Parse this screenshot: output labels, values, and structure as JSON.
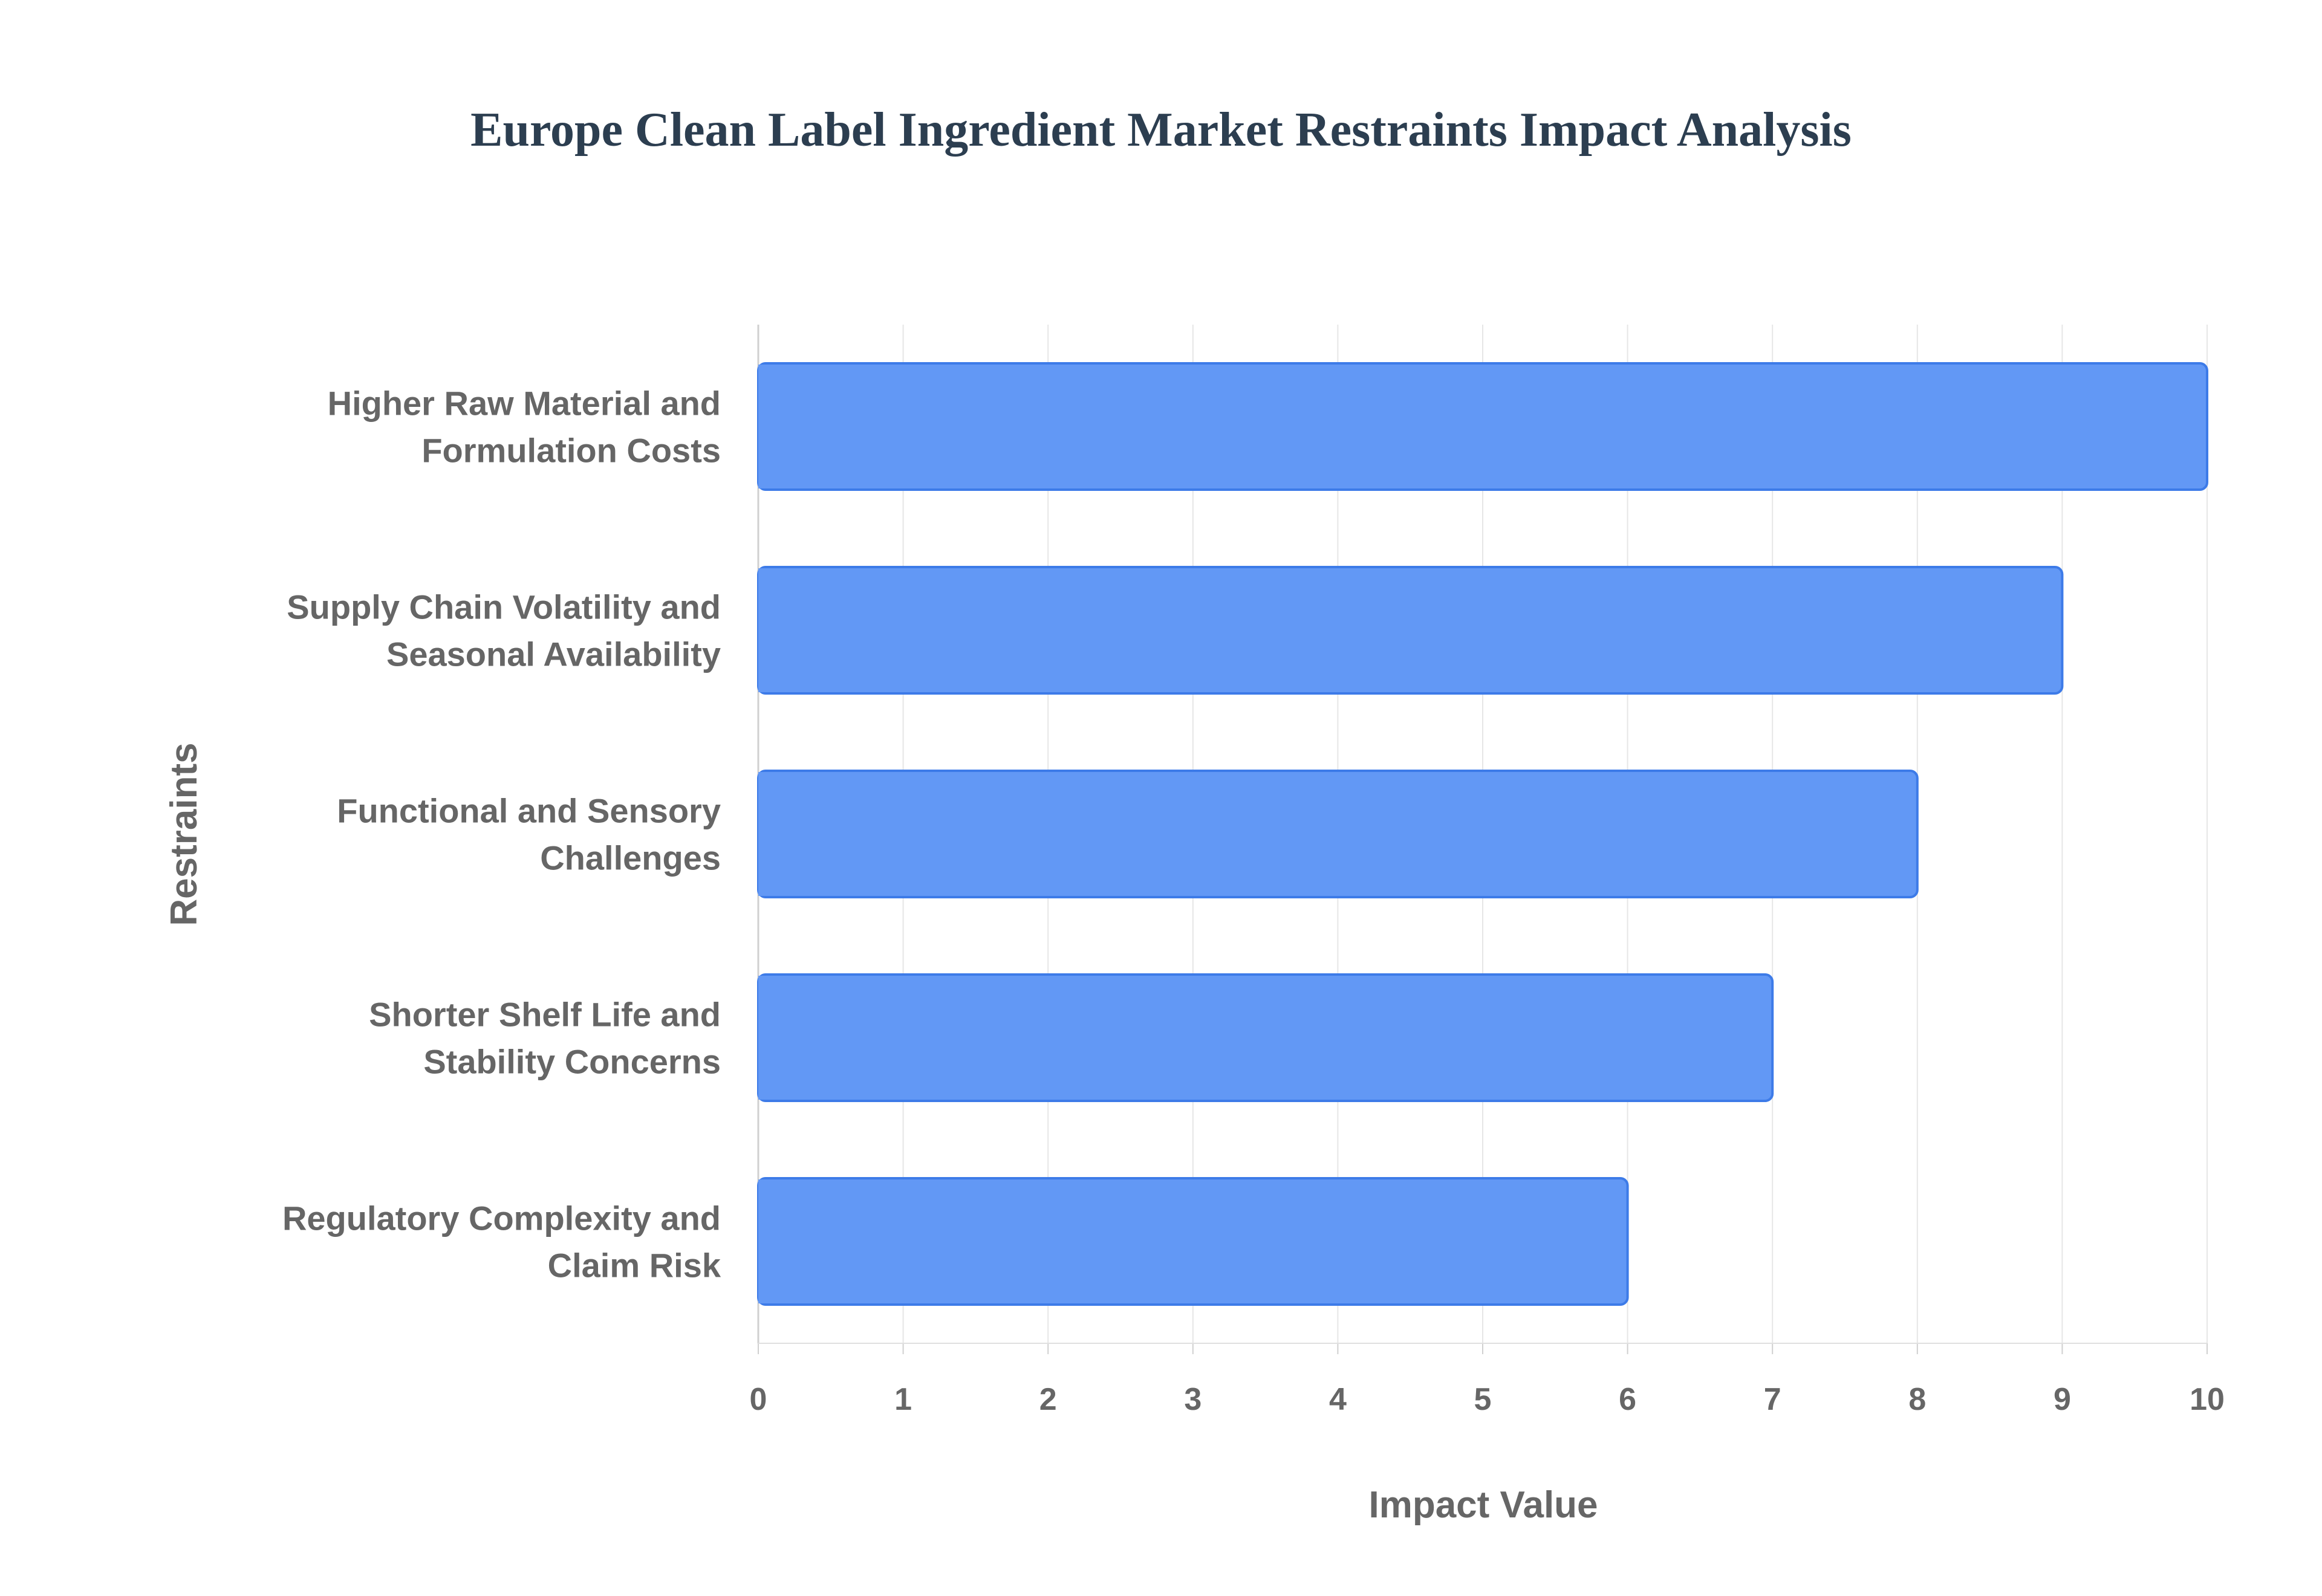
{
  "chart_data": {
    "type": "bar",
    "orientation": "horizontal",
    "title": "Europe Clean Label Ingredient Market Restraints Impact Analysis",
    "xlabel": "Impact Value",
    "ylabel": "Restraints",
    "categories": [
      [
        "Higher Raw Material and",
        "Formulation Costs"
      ],
      [
        "Supply Chain Volatility and",
        "Seasonal Availability"
      ],
      [
        "Functional and Sensory",
        "Challenges"
      ],
      [
        "Shorter Shelf Life and",
        "Stability Concerns"
      ],
      [
        "Regulatory Complexity and",
        "Claim Risk"
      ]
    ],
    "values": [
      10,
      9,
      8,
      7,
      6
    ],
    "xlim": [
      0,
      10
    ],
    "xticks": [
      "0",
      "1",
      "2",
      "3",
      "4",
      "5",
      "6",
      "7",
      "8",
      "9",
      "10"
    ],
    "grid": true,
    "legend": "none",
    "bar_color": "#6298f5",
    "bar_edge_color": "#3d7be8"
  }
}
